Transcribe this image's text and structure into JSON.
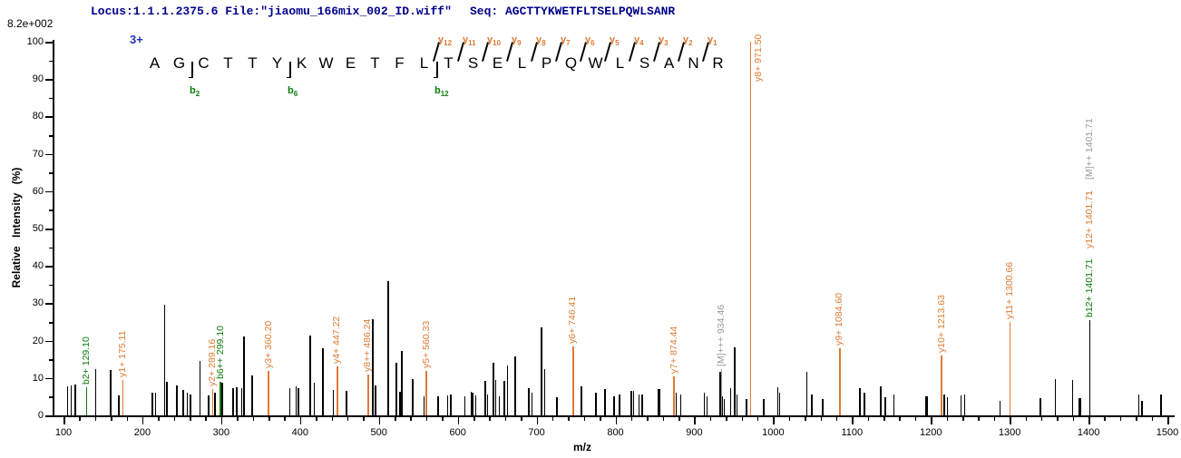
{
  "header": {
    "locus_file": "Locus:1.1.1.2375.6 File:\"jiaomu_166mix_002_ID.wiff\"",
    "seq": "Seq: AGCTTYKWETFLTSELPQWLSANR",
    "max_intensity": "8.2e+002",
    "charge": "3+"
  },
  "sequence_display": {
    "residues": [
      {
        "aa": "A"
      },
      {
        "aa": "G"
      },
      {
        "aa": "C",
        "b_cut": {
          "ion": "b",
          "num": "2"
        }
      },
      {
        "aa": "T"
      },
      {
        "aa": "T"
      },
      {
        "aa": "Y"
      },
      {
        "aa": "K",
        "b_cut": {
          "ion": "b",
          "num": "6"
        }
      },
      {
        "aa": "W"
      },
      {
        "aa": "E"
      },
      {
        "aa": "T"
      },
      {
        "aa": "F"
      },
      {
        "aa": "L"
      },
      {
        "aa": "T",
        "b_cut": {
          "ion": "b",
          "num": "12"
        },
        "y_cut": {
          "ion": "y",
          "num": "12"
        }
      },
      {
        "aa": "S",
        "y_cut": {
          "ion": "y",
          "num": "11"
        }
      },
      {
        "aa": "E",
        "y_cut": {
          "ion": "y",
          "num": "10"
        }
      },
      {
        "aa": "L",
        "y_cut": {
          "ion": "y",
          "num": "9"
        }
      },
      {
        "aa": "P",
        "y_cut": {
          "ion": "y",
          "num": "8"
        }
      },
      {
        "aa": "Q",
        "y_cut": {
          "ion": "y",
          "num": "7"
        }
      },
      {
        "aa": "W",
        "y_cut": {
          "ion": "y",
          "num": "6"
        }
      },
      {
        "aa": "L",
        "y_cut": {
          "ion": "y",
          "num": "5"
        }
      },
      {
        "aa": "S",
        "y_cut": {
          "ion": "y",
          "num": "4"
        }
      },
      {
        "aa": "A",
        "y_cut": {
          "ion": "y",
          "num": "3"
        }
      },
      {
        "aa": "N",
        "y_cut": {
          "ion": "y",
          "num": "2"
        }
      },
      {
        "aa": "R",
        "y_cut": {
          "ion": "y",
          "num": "1"
        }
      }
    ]
  },
  "chart_data": {
    "type": "ms2_stick_spectrum",
    "xlabel": "m/z",
    "ylabel": "Relative Intensity (%)",
    "xlim": [
      100,
      1500
    ],
    "ylim": [
      0,
      100
    ],
    "x_major_tick_step": 100,
    "x_minor_tick_step": 20,
    "y_major_tick_step": 10,
    "y_minor_tick_step": 5,
    "x_tick_labels": [
      "100",
      "200",
      "300",
      "400",
      "500",
      "600",
      "700",
      "800",
      "900",
      "1000",
      "1100",
      "1200",
      "1300",
      "1400",
      "1500"
    ],
    "y_tick_labels": [
      "0",
      "10",
      "20",
      "30",
      "40",
      "50",
      "60",
      "70",
      "80",
      "90",
      "100"
    ],
    "colors": {
      "y_ion": "#DE7B35",
      "b_ion": "#0B7B0B",
      "precursor": "#999999",
      "peak": "#000000",
      "header": "#00008B"
    },
    "annotated_peaks": [
      {
        "mz": 129.1,
        "intensity": 7.5,
        "ion": "b",
        "label": "b2+ 129.10"
      },
      {
        "mz": 175.11,
        "intensity": 9.5,
        "ion": "y",
        "label": "y1+ 175.11"
      },
      {
        "mz": 289.16,
        "intensity": 7.0,
        "ion": "y",
        "label": "y2+ 289.16"
      },
      {
        "mz": 299.1,
        "intensity": 9.0,
        "ion": "b",
        "label": "b6++ 299.10"
      },
      {
        "mz": 360.2,
        "intensity": 12.0,
        "ion": "y",
        "label": "y3+ 360.20"
      },
      {
        "mz": 447.22,
        "intensity": 13.0,
        "ion": "y",
        "label": "y4+ 447.22"
      },
      {
        "mz": 486.24,
        "intensity": 11.0,
        "ion": "y",
        "label": "y8++ 486.24"
      },
      {
        "mz": 560.33,
        "intensity": 12.0,
        "ion": "y",
        "label": "y5+ 560.33"
      },
      {
        "mz": 746.41,
        "intensity": 18.5,
        "ion": "y",
        "label": "y6+ 746.41"
      },
      {
        "mz": 874.44,
        "intensity": 10.5,
        "ion": "y",
        "label": "y7+ 874.44"
      },
      {
        "mz": 934.46,
        "intensity": 12.5,
        "ion": "M",
        "label": "[M]+++ 934.46"
      },
      {
        "mz": 971.5,
        "intensity": 100,
        "ion": "y",
        "label": "y8+ 971.50",
        "beside": true
      },
      {
        "mz": 1084.6,
        "intensity": 18.0,
        "ion": "y",
        "label": "y9+ 1084.60"
      },
      {
        "mz": 1213.63,
        "intensity": 16.0,
        "ion": "y",
        "label": "y10+ 1213.63"
      },
      {
        "mz": 1300.66,
        "intensity": 25.0,
        "ion": "y",
        "label": "y11+ 1300.66"
      },
      {
        "mz": 1401.71,
        "intensity": 25.5,
        "ion": "peak",
        "labels": [
          {
            "text": "b12+ 1401.71",
            "ion": "b"
          },
          {
            "text": "y12+ 1401.71",
            "ion": "y"
          },
          {
            "text": "[M]++ 1401.71",
            "ion": "M"
          }
        ]
      }
    ],
    "peaks": [
      [
        105,
        7.8
      ],
      [
        110,
        8
      ],
      [
        115,
        8.2
      ],
      [
        141,
        12.5
      ],
      [
        160,
        12.2
      ],
      [
        170,
        5.4
      ],
      [
        213,
        6.1
      ],
      [
        217,
        6
      ],
      [
        228,
        29.5
      ],
      [
        231,
        9
      ],
      [
        244,
        8
      ],
      [
        252,
        6.8
      ],
      [
        257,
        6
      ],
      [
        261,
        5.6
      ],
      [
        273,
        14.5
      ],
      [
        284,
        5.4
      ],
      [
        292,
        6
      ],
      [
        301,
        8.8,
        3
      ],
      [
        315,
        7.2
      ],
      [
        320,
        7.6
      ],
      [
        326,
        7.2
      ],
      [
        329,
        21
      ],
      [
        339,
        10.8
      ],
      [
        387,
        7.2
      ],
      [
        395,
        7.8
      ],
      [
        398,
        7.2
      ],
      [
        413,
        21.3
      ],
      [
        418,
        8.8
      ],
      [
        429,
        18
      ],
      [
        442,
        6.8
      ],
      [
        459,
        6.5
      ],
      [
        492,
        25.8
      ],
      [
        496,
        8
      ],
      [
        512,
        35.9
      ],
      [
        522,
        14
      ],
      [
        527,
        6.4
      ],
      [
        529,
        17.3
      ],
      [
        543,
        9.6
      ],
      [
        557,
        5
      ],
      [
        575,
        5.2
      ],
      [
        587,
        5.3
      ],
      [
        591,
        5.6
      ],
      [
        609,
        5
      ],
      [
        617,
        6.4
      ],
      [
        619,
        6
      ],
      [
        623,
        5.3
      ],
      [
        635,
        9.2
      ],
      [
        638,
        5.6
      ],
      [
        645,
        14.1
      ],
      [
        648,
        9.4
      ],
      [
        653,
        5.2
      ],
      [
        659,
        9.2
      ],
      [
        663,
        13.4
      ],
      [
        673,
        15.7
      ],
      [
        690,
        7.2,
        2
      ],
      [
        694,
        6
      ],
      [
        706,
        23.6
      ],
      [
        710,
        12.5
      ],
      [
        726,
        4.8
      ],
      [
        757,
        7.8
      ],
      [
        775,
        6
      ],
      [
        787,
        7
      ],
      [
        798,
        5
      ],
      [
        805,
        5.5
      ],
      [
        820,
        6.5
      ],
      [
        823,
        6.5
      ],
      [
        830,
        5.5
      ],
      [
        834,
        5.5
      ],
      [
        855,
        7,
        3
      ],
      [
        877,
        6
      ],
      [
        883,
        5.6
      ],
      [
        913,
        6
      ],
      [
        916,
        5
      ],
      [
        933,
        11.6
      ],
      [
        935,
        5.2
      ],
      [
        938,
        4.4
      ],
      [
        946,
        7.2
      ],
      [
        951,
        18.1
      ],
      [
        954,
        5.6
      ],
      [
        966,
        4.4
      ],
      [
        988,
        4.4
      ],
      [
        1006,
        7.6
      ],
      [
        1008,
        6
      ],
      [
        1043,
        11.7
      ],
      [
        1049,
        5.6
      ],
      [
        1063,
        4.4
      ],
      [
        1110,
        7.2,
        2
      ],
      [
        1116,
        6
      ],
      [
        1137,
        7.8,
        2
      ],
      [
        1142,
        4.8
      ],
      [
        1153,
        5.6
      ],
      [
        1195,
        5,
        3
      ],
      [
        1217,
        5.6
      ],
      [
        1221,
        4.8
      ],
      [
        1238,
        5.4
      ],
      [
        1243,
        5.6
      ],
      [
        1288,
        4
      ],
      [
        1339,
        4.5
      ],
      [
        1358,
        9.7
      ],
      [
        1380,
        9.4
      ],
      [
        1389,
        4.5,
        3
      ],
      [
        1464,
        5.7
      ],
      [
        1468,
        4
      ],
      [
        1492,
        5.6
      ]
    ]
  }
}
